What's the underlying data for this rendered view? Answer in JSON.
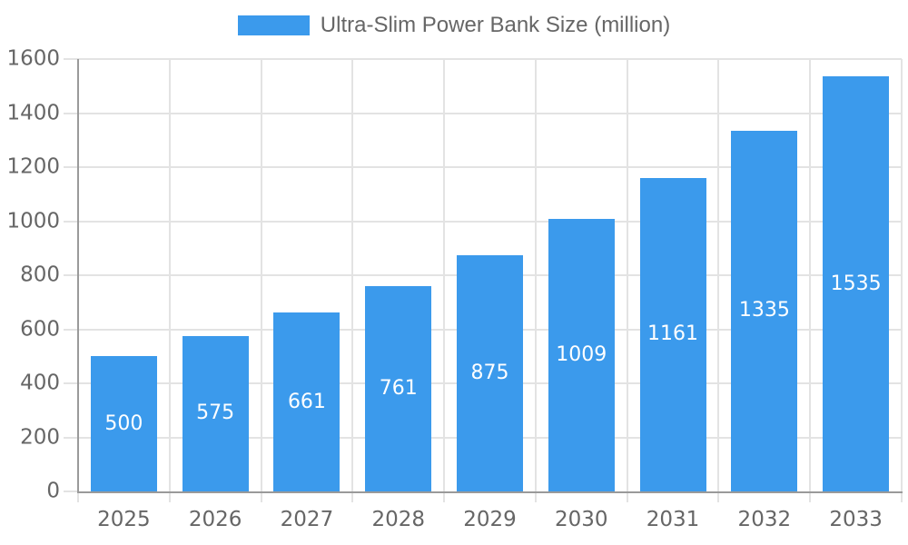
{
  "legend": {
    "label": "Ultra-Slim Power Bank Size (million)"
  },
  "chart_data": {
    "type": "bar",
    "title": "Ultra-Slim Power Bank Size (million)",
    "categories": [
      "2025",
      "2026",
      "2027",
      "2028",
      "2029",
      "2030",
      "2031",
      "2032",
      "2033"
    ],
    "values": [
      500,
      575,
      661,
      761,
      875,
      1009,
      1161,
      1335,
      1535
    ],
    "xlabel": "",
    "ylabel": "",
    "ylim": [
      0,
      1600
    ],
    "ytick_step": 200,
    "grid": true,
    "legend_position": "top",
    "colors": {
      "bar": "#3b9aec",
      "value_label": "#ffffff",
      "tick_label": "#666666",
      "legend_text": "#666666",
      "gridline": "#e3e3e3",
      "axis_line": "#9a9a9a",
      "background": "#ffffff"
    }
  }
}
